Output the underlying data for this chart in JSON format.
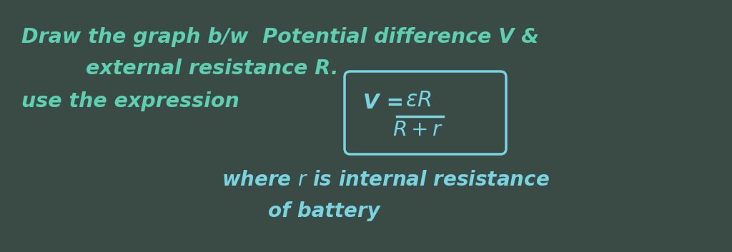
{
  "background_color": "#3a4a44",
  "line1": "Draw the graph b/w  Potential difference V &",
  "line2": "external resistance R.",
  "line3": "use the expression",
  "line4": "where r is internal resistance",
  "line5": "of battery",
  "text_color": "#5ecfb0",
  "formula_color": "#7ad4e0",
  "box_color": "#7ad4e0",
  "bg_dark": "#2a3830"
}
